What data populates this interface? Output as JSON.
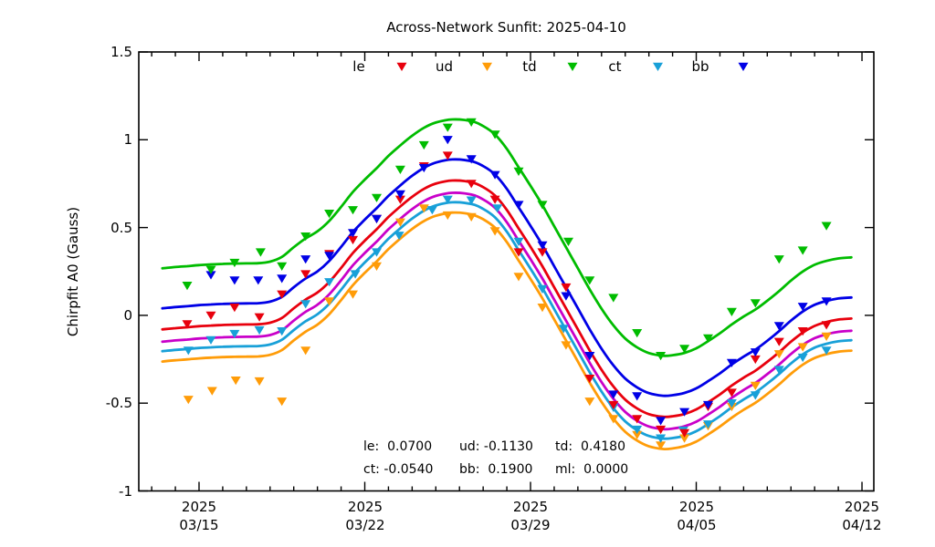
{
  "chart_data": {
    "type": "line",
    "title": "Across-Network Sunfit: 2025-04-10",
    "ylabel": "Chirpfit A0 (Gauss)",
    "ylim": [
      -1,
      1.5
    ],
    "yticks": [
      {
        "v": -1,
        "label": "-1"
      },
      {
        "v": -0.5,
        "label": "-0.5"
      },
      {
        "v": 0,
        "label": "0"
      },
      {
        "v": 0.5,
        "label": "0.5"
      },
      {
        "v": 1,
        "label": "1"
      },
      {
        "v": 1.5,
        "label": "1.5"
      }
    ],
    "x_range_days": [
      0.455,
      31.5
    ],
    "x_epoch_note": "days since 2025-03-12",
    "xticks": [
      {
        "d": 3,
        "year": "2025",
        "date": "03/15"
      },
      {
        "d": 10,
        "year": "2025",
        "date": "03/22"
      },
      {
        "d": 17,
        "year": "2025",
        "date": "03/29"
      },
      {
        "d": 24,
        "year": "2025",
        "date": "04/05"
      },
      {
        "d": 31,
        "year": "2025",
        "date": "04/12"
      }
    ],
    "minor_xticks_days": [
      1,
      2,
      4,
      5,
      6,
      7,
      8,
      9,
      11,
      12,
      13,
      14,
      15,
      16,
      18,
      19,
      20,
      21,
      22,
      23,
      25,
      26,
      27,
      28,
      29,
      30
    ],
    "grid": false,
    "legend_position": "top-center-inside",
    "legend": [
      {
        "name": "le",
        "color": "#e8000d"
      },
      {
        "name": "ud",
        "color": "#ff9c08"
      },
      {
        "name": "td",
        "color": "#00bc00"
      },
      {
        "name": "ct",
        "color": "#18a0d8"
      },
      {
        "name": "bb",
        "color": "#0000e6"
      }
    ],
    "fit_params": {
      "le": "0.0700",
      "ud": "-0.1130",
      "td": "0.4180",
      "ct": "-0.0540",
      "bb": "0.1900",
      "ml": "0.0000"
    },
    "annot_rows": [
      [
        "le",
        "ud",
        "td"
      ],
      [
        "ct",
        "bb",
        "ml"
      ]
    ],
    "base_curve": [
      [
        1.45,
        -0.15
      ],
      [
        2,
        -0.143
      ],
      [
        2.5,
        -0.138
      ],
      [
        3,
        -0.132
      ],
      [
        3.5,
        -0.128
      ],
      [
        4,
        -0.125
      ],
      [
        4.5,
        -0.123
      ],
      [
        5,
        -0.122
      ],
      [
        5.5,
        -0.121
      ],
      [
        6,
        -0.112
      ],
      [
        6.5,
        -0.085
      ],
      [
        7,
        -0.03
      ],
      [
        7.5,
        0.02
      ],
      [
        8,
        0.06
      ],
      [
        8.5,
        0.12
      ],
      [
        9,
        0.2
      ],
      [
        9.5,
        0.285
      ],
      [
        10,
        0.355
      ],
      [
        10.5,
        0.42
      ],
      [
        11,
        0.49
      ],
      [
        11.5,
        0.55
      ],
      [
        12,
        0.605
      ],
      [
        12.5,
        0.65
      ],
      [
        13,
        0.68
      ],
      [
        13.7,
        0.698
      ],
      [
        14.5,
        0.688
      ],
      [
        15,
        0.66
      ],
      [
        15.5,
        0.612
      ],
      [
        16,
        0.53
      ],
      [
        16.5,
        0.425
      ],
      [
        17,
        0.32
      ],
      [
        17.5,
        0.21
      ],
      [
        18,
        0.09
      ],
      [
        18.5,
        -0.03
      ],
      [
        19,
        -0.15
      ],
      [
        19.5,
        -0.27
      ],
      [
        20,
        -0.38
      ],
      [
        20.5,
        -0.475
      ],
      [
        21,
        -0.55
      ],
      [
        21.5,
        -0.6
      ],
      [
        22,
        -0.633
      ],
      [
        22.6,
        -0.648
      ],
      [
        23,
        -0.645
      ],
      [
        23.5,
        -0.632
      ],
      [
        24,
        -0.606
      ],
      [
        24.5,
        -0.565
      ],
      [
        25,
        -0.52
      ],
      [
        25.5,
        -0.47
      ],
      [
        26,
        -0.425
      ],
      [
        26.5,
        -0.385
      ],
      [
        27,
        -0.335
      ],
      [
        27.5,
        -0.28
      ],
      [
        28,
        -0.22
      ],
      [
        28.5,
        -0.168
      ],
      [
        29,
        -0.13
      ],
      [
        29.5,
        -0.108
      ],
      [
        30,
        -0.094
      ],
      [
        30.55,
        -0.088
      ]
    ],
    "series": [
      {
        "name": "ud",
        "color": "#ff9c08",
        "offset": -0.113,
        "points": [
          [
            2.55,
            -0.48
          ],
          [
            3.55,
            -0.43
          ],
          [
            4.55,
            -0.37
          ],
          [
            5.55,
            -0.375
          ],
          [
            6.5,
            -0.49
          ],
          [
            7.5,
            -0.2
          ],
          [
            8.5,
            0.08
          ],
          [
            9.5,
            0.12
          ],
          [
            10.5,
            0.28
          ],
          [
            11.5,
            0.53
          ],
          [
            12.5,
            0.61
          ],
          [
            13.5,
            0.57
          ],
          [
            14.5,
            0.56
          ],
          [
            15.5,
            0.48
          ],
          [
            16.5,
            0.22
          ],
          [
            17.5,
            0.045
          ],
          [
            18.5,
            -0.17
          ],
          [
            19.5,
            -0.49
          ],
          [
            20.5,
            -0.59
          ],
          [
            21.5,
            -0.68
          ],
          [
            22.5,
            -0.74
          ],
          [
            23.5,
            -0.7
          ],
          [
            24.5,
            -0.63
          ],
          [
            25.5,
            -0.52
          ],
          [
            26.5,
            -0.4
          ],
          [
            27.5,
            -0.22
          ],
          [
            28.5,
            -0.18
          ],
          [
            29.5,
            -0.12
          ]
        ]
      },
      {
        "name": "ct",
        "color": "#18a0d8",
        "offset": -0.054,
        "points": [
          [
            2.55,
            -0.2
          ],
          [
            3.5,
            -0.14
          ],
          [
            4.5,
            -0.105
          ],
          [
            5.55,
            -0.084
          ],
          [
            6.5,
            -0.09
          ],
          [
            7.5,
            0.065
          ],
          [
            8.5,
            0.19
          ],
          [
            9.6,
            0.235
          ],
          [
            10.5,
            0.36
          ],
          [
            11.45,
            0.455
          ],
          [
            12.85,
            0.6
          ],
          [
            13.5,
            0.66
          ],
          [
            14.5,
            0.655
          ],
          [
            15.6,
            0.61
          ],
          [
            16.5,
            0.42
          ],
          [
            17.5,
            0.15
          ],
          [
            18.4,
            -0.076
          ],
          [
            19.5,
            -0.23
          ],
          [
            20.5,
            -0.525
          ],
          [
            21.5,
            -0.65
          ],
          [
            22.5,
            -0.7
          ],
          [
            23.45,
            -0.655
          ],
          [
            24.5,
            -0.62
          ],
          [
            25.5,
            -0.5
          ],
          [
            26.5,
            -0.455
          ],
          [
            27.5,
            -0.31
          ],
          [
            28.5,
            -0.24
          ],
          [
            29.5,
            -0.2
          ]
        ]
      },
      {
        "name": "ml",
        "color": "#c900c9",
        "offset": 0.0,
        "points": []
      },
      {
        "name": "le",
        "color": "#e8000d",
        "offset": 0.07,
        "points": [
          [
            2.5,
            -0.05
          ],
          [
            3.5,
            0.0
          ],
          [
            4.5,
            0.045
          ],
          [
            5.55,
            -0.01
          ],
          [
            6.5,
            0.12
          ],
          [
            7.5,
            0.235
          ],
          [
            8.5,
            0.35
          ],
          [
            9.5,
            0.43
          ],
          [
            10.5,
            0.55
          ],
          [
            11.5,
            0.66
          ],
          [
            12.5,
            0.85
          ],
          [
            13.5,
            0.91
          ],
          [
            14.5,
            0.75
          ],
          [
            15.5,
            0.66
          ],
          [
            16.5,
            0.36
          ],
          [
            17.5,
            0.36
          ],
          [
            18.5,
            0.16
          ],
          [
            19.5,
            -0.36
          ],
          [
            20.5,
            -0.51
          ],
          [
            21.5,
            -0.59
          ],
          [
            22.5,
            -0.65
          ],
          [
            23.5,
            -0.67
          ],
          [
            24.5,
            -0.52
          ],
          [
            25.5,
            -0.44
          ],
          [
            26.5,
            -0.25
          ],
          [
            27.5,
            -0.15
          ],
          [
            28.5,
            -0.09
          ],
          [
            29.5,
            -0.055
          ]
        ]
      },
      {
        "name": "bb",
        "color": "#0000e6",
        "offset": 0.19,
        "points": [
          [
            3.5,
            0.23
          ],
          [
            4.5,
            0.2
          ],
          [
            5.5,
            0.2
          ],
          [
            6.5,
            0.21
          ],
          [
            7.5,
            0.32
          ],
          [
            8.5,
            0.34
          ],
          [
            9.5,
            0.47
          ],
          [
            10.5,
            0.55
          ],
          [
            11.5,
            0.69
          ],
          [
            12.5,
            0.84
          ],
          [
            13.5,
            1.0
          ],
          [
            14.5,
            0.89
          ],
          [
            15.5,
            0.8
          ],
          [
            16.5,
            0.63
          ],
          [
            17.5,
            0.4
          ],
          [
            18.5,
            0.11
          ],
          [
            19.5,
            -0.23
          ],
          [
            20.5,
            -0.45
          ],
          [
            21.5,
            -0.46
          ],
          [
            22.5,
            -0.6
          ],
          [
            23.5,
            -0.55
          ],
          [
            24.5,
            -0.51
          ],
          [
            25.5,
            -0.27
          ],
          [
            26.5,
            -0.21
          ],
          [
            27.5,
            -0.06
          ],
          [
            28.5,
            0.05
          ],
          [
            29.5,
            0.08
          ]
        ]
      },
      {
        "name": "td",
        "color": "#00bc00",
        "offset": 0.418,
        "points": [
          [
            2.5,
            0.17
          ],
          [
            3.5,
            0.26
          ],
          [
            4.5,
            0.3
          ],
          [
            5.6,
            0.36
          ],
          [
            6.5,
            0.28
          ],
          [
            7.5,
            0.45
          ],
          [
            8.5,
            0.58
          ],
          [
            9.5,
            0.6
          ],
          [
            10.5,
            0.67
          ],
          [
            11.5,
            0.83
          ],
          [
            12.5,
            0.97
          ],
          [
            13.5,
            1.07
          ],
          [
            14.5,
            1.1
          ],
          [
            15.5,
            1.03
          ],
          [
            16.5,
            0.82
          ],
          [
            17.5,
            0.63
          ],
          [
            18.6,
            0.42
          ],
          [
            19.5,
            0.2
          ],
          [
            20.5,
            0.1
          ],
          [
            21.5,
            -0.1
          ],
          [
            22.5,
            -0.23
          ],
          [
            23.5,
            -0.19
          ],
          [
            24.5,
            -0.13
          ],
          [
            25.5,
            0.02
          ],
          [
            26.5,
            0.07
          ],
          [
            27.5,
            0.32
          ],
          [
            28.5,
            0.37
          ],
          [
            29.5,
            0.51
          ]
        ]
      }
    ]
  }
}
